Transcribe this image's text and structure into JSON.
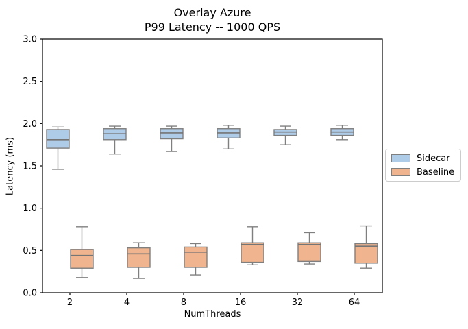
{
  "chart_data": {
    "type": "boxplot",
    "title_line1": "Overlay Azure",
    "title_line2": "P99 Latency -- 1000 QPS",
    "xlabel": "NumThreads",
    "ylabel": "Latency (ms)",
    "categories": [
      "2",
      "4",
      "8",
      "16",
      "32",
      "64"
    ],
    "ylim": [
      0.0,
      3.0
    ],
    "yticks": [
      "0.0",
      "0.5",
      "1.0",
      "1.5",
      "2.0",
      "2.5",
      "3.0"
    ],
    "grid": false,
    "legend_position": "right-outside",
    "colors": {
      "edge": "#7f7f7f",
      "median": "#757575",
      "whisker": "#7f7f7f",
      "spine": "#000000",
      "sidecar_fill": "#aecbe8",
      "baseline_fill": "#f0b48e"
    },
    "series": [
      {
        "name": "Sidecar",
        "color": "#aecbe8",
        "boxes": [
          {
            "whislo": 1.46,
            "q1": 1.71,
            "med": 1.81,
            "q3": 1.93,
            "whishi": 1.96
          },
          {
            "whislo": 1.64,
            "q1": 1.81,
            "med": 1.88,
            "q3": 1.94,
            "whishi": 1.97
          },
          {
            "whislo": 1.67,
            "q1": 1.82,
            "med": 1.89,
            "q3": 1.94,
            "whishi": 1.97
          },
          {
            "whislo": 1.7,
            "q1": 1.83,
            "med": 1.89,
            "q3": 1.94,
            "whishi": 1.98
          },
          {
            "whislo": 1.75,
            "q1": 1.86,
            "med": 1.9,
            "q3": 1.93,
            "whishi": 1.97
          },
          {
            "whislo": 1.81,
            "q1": 1.86,
            "med": 1.9,
            "q3": 1.94,
            "whishi": 1.98
          }
        ]
      },
      {
        "name": "Baseline",
        "color": "#f0b48e",
        "boxes": [
          {
            "whislo": 0.18,
            "q1": 0.29,
            "med": 0.44,
            "q3": 0.51,
            "whishi": 0.78
          },
          {
            "whislo": 0.17,
            "q1": 0.3,
            "med": 0.46,
            "q3": 0.53,
            "whishi": 0.59
          },
          {
            "whislo": 0.21,
            "q1": 0.3,
            "med": 0.48,
            "q3": 0.54,
            "whishi": 0.58
          },
          {
            "whislo": 0.33,
            "q1": 0.36,
            "med": 0.57,
            "q3": 0.59,
            "whishi": 0.78
          },
          {
            "whislo": 0.34,
            "q1": 0.37,
            "med": 0.57,
            "q3": 0.59,
            "whishi": 0.71
          },
          {
            "whislo": 0.29,
            "q1": 0.35,
            "med": 0.55,
            "q3": 0.58,
            "whishi": 0.79
          }
        ]
      }
    ]
  }
}
